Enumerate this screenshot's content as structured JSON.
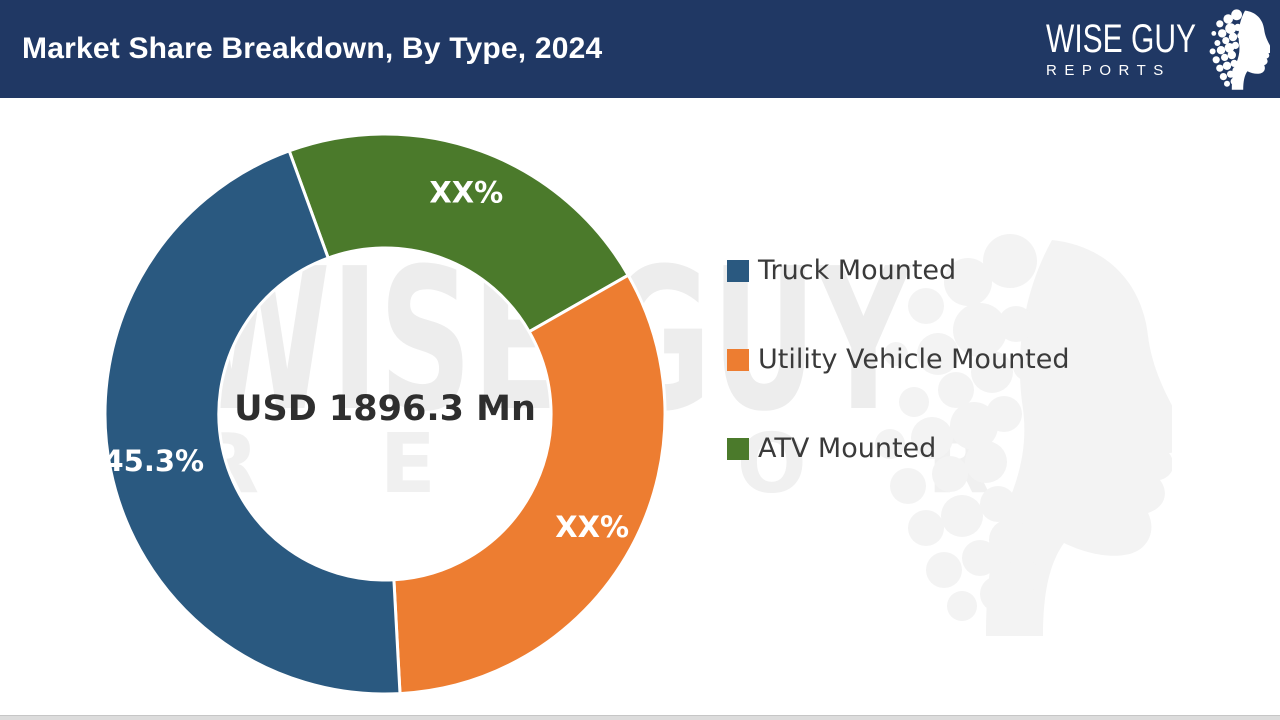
{
  "header": {
    "title": "Market Share Breakdown, By Type, 2024",
    "bg_color": "#203864",
    "logo": {
      "line1": "WISE GUY",
      "line2": "REPORTS"
    }
  },
  "chart_data": {
    "type": "pie",
    "subtype": "donut",
    "title": "Market Share Breakdown, By Type, 2024",
    "center_label": "USD 1896.3 Mn",
    "start_angle_deg": 110,
    "direction": "clockwise",
    "draw_sequence": [
      "ATV Mounted",
      "Utility Vehicle Mounted",
      "Truck Mounted"
    ],
    "segments": [
      {
        "name": "Truck Mounted",
        "display_label": "45.3%",
        "value_pct": 45.3,
        "color": "#2a5980"
      },
      {
        "name": "Utility Vehicle Mounted",
        "display_label": "XX%",
        "value_pct": 32.4,
        "color": "#ed7d31"
      },
      {
        "name": "ATV Mounted",
        "display_label": "XX%",
        "value_pct": 22.3,
        "color": "#4b7a2b"
      }
    ],
    "legend_position": "right",
    "gap_stroke_color": "#ffffff",
    "label_color": "#ffffff",
    "center_label_color": "#2e2e2e"
  },
  "legend": {
    "items": [
      {
        "label": "Truck Mounted",
        "color": "#2a5980"
      },
      {
        "label": "Utility Vehicle Mounted",
        "color": "#ed7d31"
      },
      {
        "label": "ATV Mounted",
        "color": "#4b7a2b"
      }
    ]
  },
  "watermark": {
    "line1": "WISE GUY",
    "line2": "R E P O R T S"
  }
}
